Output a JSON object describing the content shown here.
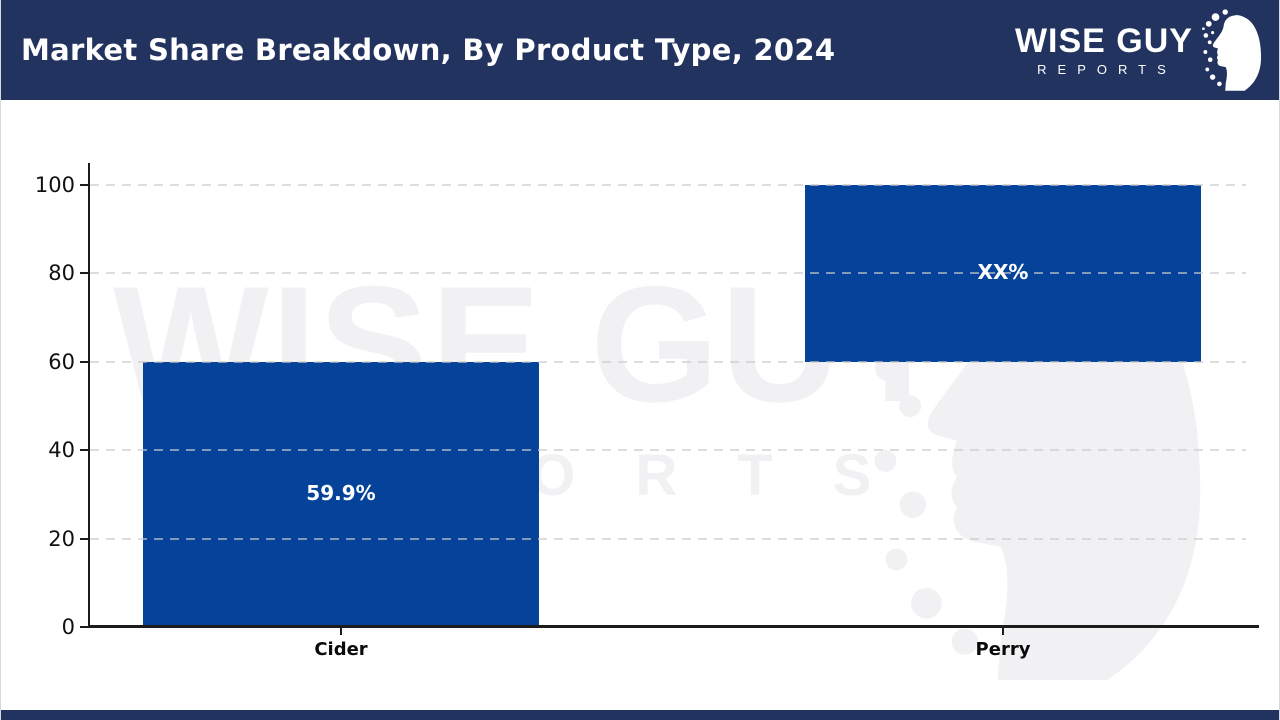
{
  "header": {
    "title": "Market Share Breakdown, By Product Type, 2024",
    "logo": {
      "name": "WISE GUY",
      "tagline": "REPORTS"
    }
  },
  "watermark": {
    "line1": "WISE GUY",
    "line2": "REPORTS"
  },
  "chart_data": {
    "type": "bar",
    "subtype": "floating-segment-bars",
    "title": "Market Share Breakdown, By Product Type, 2024",
    "categories": [
      "Cider",
      "Perry"
    ],
    "bars": [
      {
        "category": "Cider",
        "label": "59.9%",
        "start": 0,
        "end": 59.9
      },
      {
        "category": "Perry",
        "label": "XX%",
        "start": 60,
        "end": 100
      }
    ],
    "xlabel": "",
    "ylabel": "",
    "ylim": [
      0,
      100
    ],
    "yticks": [
      0,
      20,
      40,
      60,
      80,
      100
    ],
    "grid": "horizontal-dashed",
    "legend": "none",
    "bar_color": "#054299",
    "bar_label_color": "#ffffff"
  },
  "colors": {
    "header_bg": "#21335e",
    "footer_bg": "#21335e",
    "bar": "#054299",
    "axis": "#1c1c1c",
    "gridline": "#cbcbcb",
    "watermark": "#f1f1f3",
    "title_text": "#ffffff"
  }
}
